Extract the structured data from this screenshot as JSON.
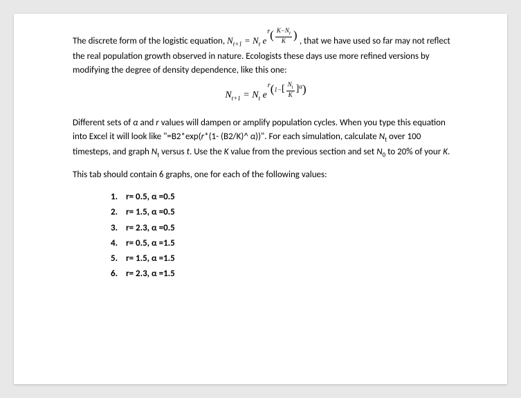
{
  "paragraph1": {
    "part1": "The discrete form of the logistic equation, ",
    "eq1_lhs": "N",
    "eq1_sub1": "t+1",
    "eq1_eq": " = ",
    "eq1_rhs_n": "N",
    "eq1_sub2": "t",
    "eq1_e": " e",
    "eq1_exp_r": "r",
    "eq1_frac_num": "K−N",
    "eq1_frac_num_sub": "t",
    "eq1_frac_den": "K",
    "part2": " , that we have used so far may not reflect the real population growth observed in nature. Ecologists these days use more refined versions by modifying the degree of density dependence, like this one:"
  },
  "equation2": {
    "lhs_n": "N",
    "lhs_sub": "t+1",
    "eq": " = ",
    "rhs_n": "N",
    "rhs_sub": "t",
    "e": " e",
    "exp_r": "r",
    "one_minus": "1−",
    "inner_frac_num_n": "N",
    "inner_frac_num_sub": "t",
    "inner_frac_den": "K",
    "alpha": "α"
  },
  "paragraph2": {
    "text": "Different sets of ",
    "alpha": "α",
    "text2": " and ",
    "rvar": "r",
    "text3": " values will dampen or amplify population cycles. When you type this equation into Excel it will look like \"=B2*exp(",
    "rvar2": "r",
    "text4": "*(1- (B2/K)^ ",
    "alpha2": "α",
    "text5": "))\". For each simulation, calculate ",
    "nvar": "N",
    "nsub": "t",
    "text6": " over 100 timesteps, and graph ",
    "nvar2": "N",
    "nsub2": "t",
    "text7": " versus ",
    "tvar": "t",
    "text8": ". Use the ",
    "kvar": "K",
    "text9": " value from the previous section and set ",
    "nvar3": "N",
    "nsub3": "0",
    "text10": " to 20% of your ",
    "kvar2": "K",
    "text11": "."
  },
  "paragraph3": "This tab should contain 6 graphs, one for each of the following values:",
  "list": [
    {
      "num": "1.",
      "text": "r= 0.5,  α =0.5"
    },
    {
      "num": "2.",
      "text": "r= 1.5,  α =0.5"
    },
    {
      "num": "3.",
      "text": "r= 2.3,  α =0.5"
    },
    {
      "num": "4.",
      "text": "r= 0.5,  α =1.5"
    },
    {
      "num": "5.",
      "text": "r= 1.5,  α =1.5"
    },
    {
      "num": "6.",
      "text": "r= 2.3,  α =1.5"
    }
  ],
  "colors": {
    "page_bg": "#ffffff",
    "body_bg": "#e8e8e8",
    "text": "#000000"
  }
}
